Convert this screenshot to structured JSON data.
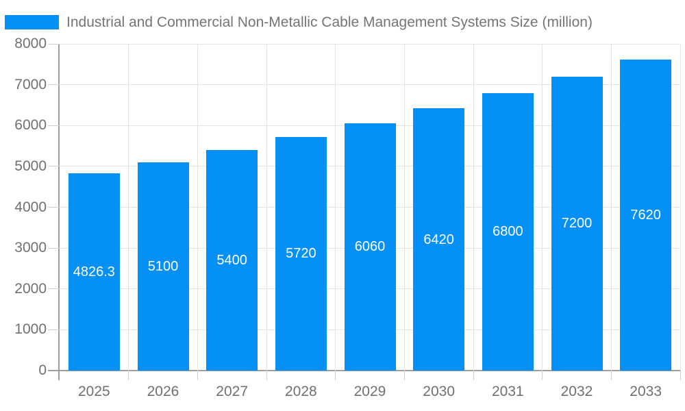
{
  "chart_data": {
    "type": "bar",
    "title": "Industrial and Commercial Non-Metallic Cable Management Systems Size (million)",
    "categories": [
      "2025",
      "2026",
      "2027",
      "2028",
      "2029",
      "2030",
      "2031",
      "2032",
      "2033"
    ],
    "values": [
      4826.3,
      5100,
      5400,
      5720,
      6060,
      6420,
      6800,
      7200,
      7620
    ],
    "bar_labels": [
      "4826.3",
      "5100",
      "5400",
      "5720",
      "6060",
      "6420",
      "6800",
      "7200",
      "7620"
    ],
    "xlabel": "",
    "ylabel": "",
    "ylim": [
      0,
      8000
    ],
    "ytick_interval": 1000,
    "ytick_labels": [
      "0",
      "1000",
      "2000",
      "3000",
      "4000",
      "5000",
      "6000",
      "7000",
      "8000"
    ],
    "grid": true,
    "legend_position": "top-left",
    "colors": {
      "bar": "#0590F6",
      "grid": "#e3e3e3",
      "tick": "#cfcfcf",
      "axis_line": "#9e9e9e",
      "axis_label": "#707070",
      "title_text": "#757575",
      "bar_label": "#ffffff",
      "background": "#ffffff"
    }
  }
}
